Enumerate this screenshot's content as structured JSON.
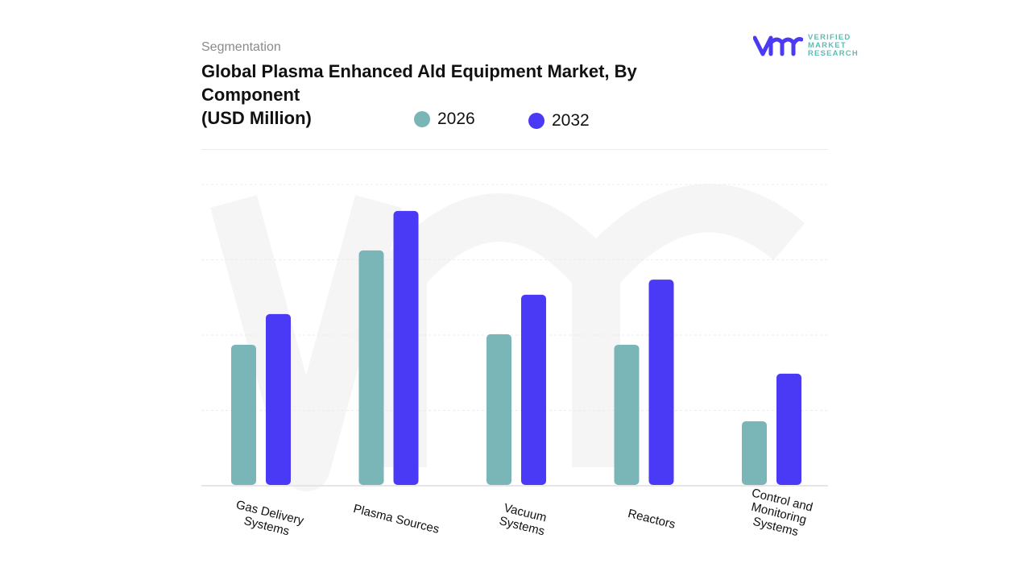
{
  "header": {
    "segment_label": "Segmentation",
    "title": "Global Plasma Enhanced Ald Equipment Market, By Component",
    "unit": "(USD Million)"
  },
  "logo": {
    "mark": "vmr",
    "line1": "VERIFIED",
    "line2": "MARKET",
    "line3": "RESEARCH"
  },
  "chart_data": {
    "type": "bar",
    "title": "Global Plasma Enhanced Ald Equipment Market, By Component (USD Million)",
    "xlabel": "",
    "ylabel": "",
    "ylim": [
      0,
      100
    ],
    "grid": true,
    "legend_position": "top",
    "note": "No y-axis values shown; values are relative estimates (top gridline = 100)",
    "categories": [
      "Gas Delivery\nSystems",
      "Plasma Sources",
      "Vacuum\nSystems",
      "Reactors",
      "Control and\nMonitoring\nSystems"
    ],
    "series": [
      {
        "name": "2026",
        "color": "#7ab5b8",
        "values": [
          46.8,
          78.1,
          50.3,
          46.8,
          21.4
        ]
      },
      {
        "name": "2032",
        "color": "#4b3af5",
        "values": [
          57.0,
          91.2,
          63.4,
          68.4,
          37.2
        ]
      }
    ]
  }
}
